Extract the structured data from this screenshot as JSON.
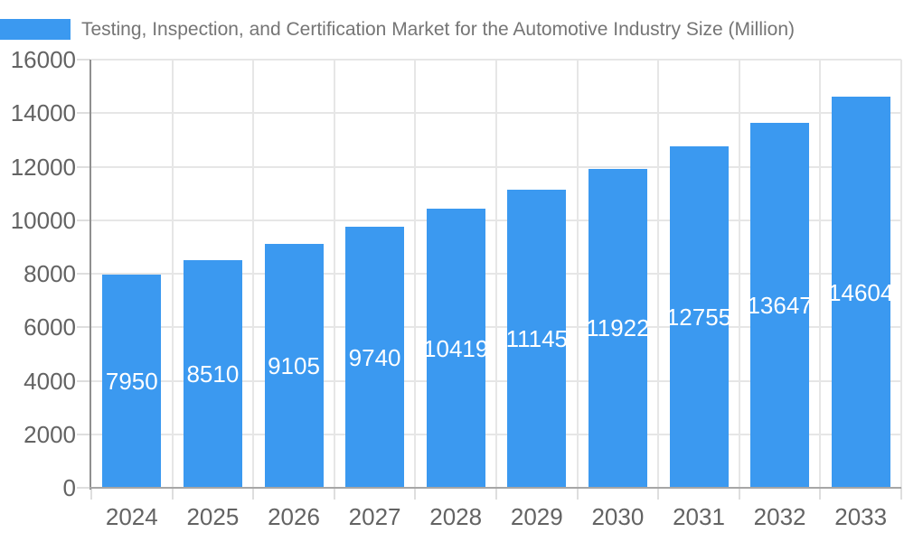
{
  "chart": {
    "title": "Testing, Inspection, and Certification Market for the Automotive Industry Size (Million)"
  },
  "chart_data": {
    "type": "bar",
    "title": "Testing, Inspection, and Certification Market for the Automotive Industry Size (Million)",
    "legend": {
      "position": "top-left",
      "entries": [
        "Testing, Inspection, and Certification Market for the Automotive Industry Size (Million)"
      ]
    },
    "categories": [
      "2024",
      "2025",
      "2026",
      "2027",
      "2028",
      "2029",
      "2030",
      "2031",
      "2032",
      "2033"
    ],
    "values": [
      7950,
      8510,
      9105,
      9740,
      10419,
      11145,
      11922,
      12755,
      13647,
      14604
    ],
    "xlabel": "",
    "ylabel": "",
    "ylim": [
      0,
      16000
    ],
    "yticks": [
      0,
      2000,
      4000,
      6000,
      8000,
      10000,
      12000,
      14000,
      16000
    ],
    "grid": true,
    "annotations": "values shown in white inside each bar",
    "colors": {
      "bar": "#3B99F0",
      "title_text": "#757575",
      "axis_label": "#636363",
      "gridline": "#e6e6e6",
      "axis_line": "#a6a6a6",
      "annotation_text": "#ffffff"
    }
  }
}
